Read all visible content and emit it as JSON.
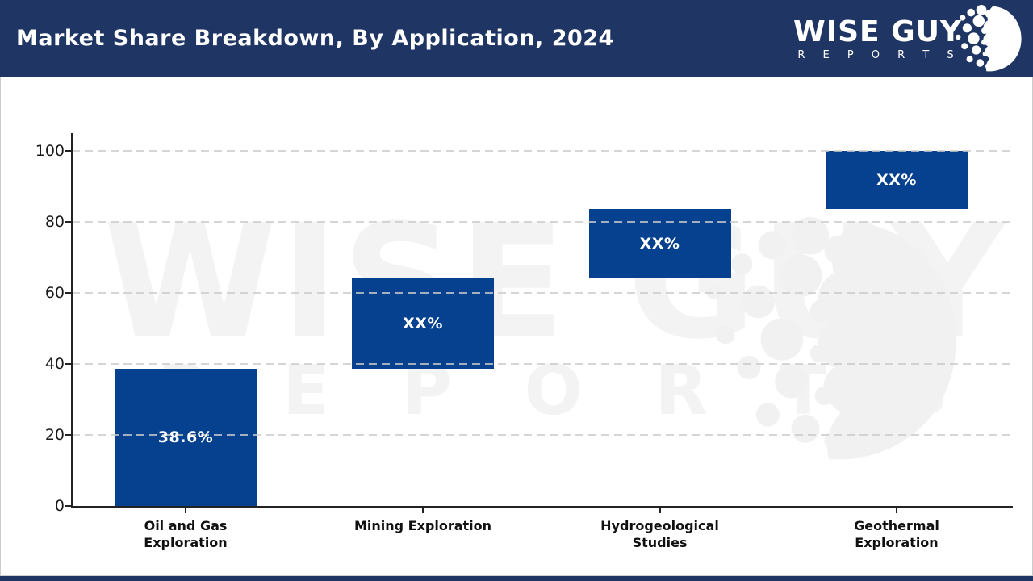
{
  "header": {
    "title": "Market Share Breakdown, By Application, 2024",
    "logo": {
      "wise_guy": "WISE GUY",
      "reports": "R E P O R T S"
    }
  },
  "watermark": {
    "line1": "WISE GUY",
    "line2": "R E P O R T S"
  },
  "colors": {
    "header_bg": "#1f3563",
    "footer_bg": "#1f3563",
    "bar": "#05418f",
    "bar_label": "#ffffff",
    "gridline": "#cbcbcb",
    "axis": "#222222",
    "watermark": "#f3f3f3"
  },
  "chart_data": {
    "type": "bar",
    "variant": "waterfall",
    "title": "Market Share Breakdown, By Application, 2024",
    "xlabel": "",
    "ylabel": "",
    "categories": [
      "Oil and Gas Exploration",
      "Mining Exploration",
      "Hydrogeological Studies",
      "Geothermal Exploration"
    ],
    "category_lines": [
      [
        "Oil and Gas",
        "Exploration"
      ],
      [
        "Mining Exploration"
      ],
      [
        "Hydrogeological",
        "Studies"
      ],
      [
        "Geothermal",
        "Exploration"
      ]
    ],
    "segments": [
      {
        "category": "Oil and Gas Exploration",
        "start": 0,
        "end": 38.6,
        "label": "38.6%"
      },
      {
        "category": "Mining Exploration",
        "start": 38.6,
        "end": 64.3,
        "label": "XX%"
      },
      {
        "category": "Hydrogeological Studies",
        "start": 64.3,
        "end": 83.6,
        "label": "XX%"
      },
      {
        "category": "Geothermal Exploration",
        "start": 83.6,
        "end": 100,
        "label": "XX%"
      }
    ],
    "yticks": [
      0,
      20,
      40,
      60,
      80,
      100
    ],
    "ylim": [
      0,
      105
    ],
    "grid": "dashed-horizontal",
    "legend": "none"
  }
}
